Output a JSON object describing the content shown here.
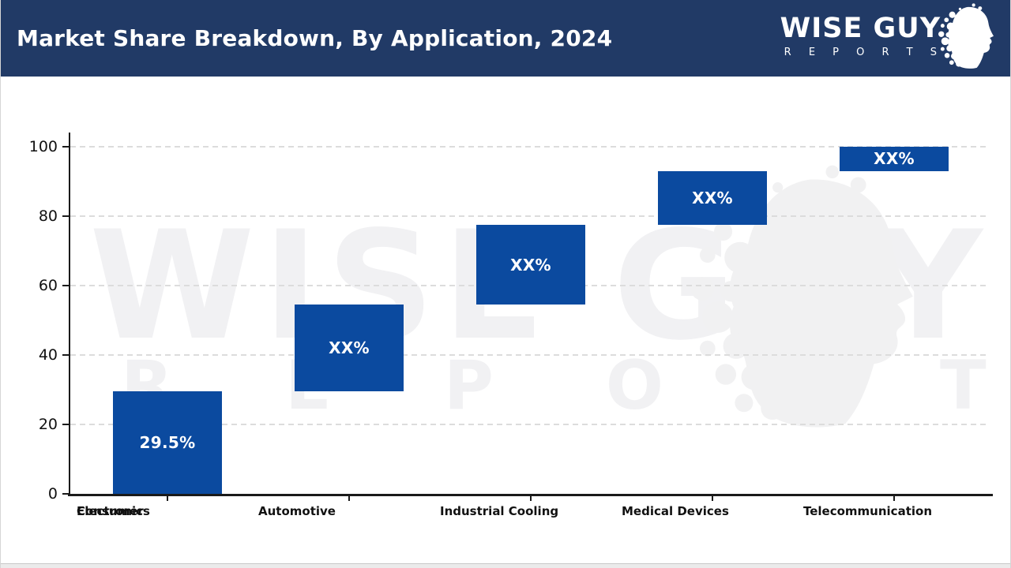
{
  "header": {
    "title": "Market Share Breakdown, By Application, 2024",
    "logo": {
      "line1": "WISE GUY",
      "line2": "R E P O R T S"
    }
  },
  "watermark": {
    "line1": "WISE GUY",
    "line2": "R E P O R T S"
  },
  "colors": {
    "header_background": "#213a66",
    "bar_fill": "#0b4a9f",
    "bar_label": "#ffffff",
    "gridline": "#dcdcdc",
    "axis": "#1a1a1a",
    "watermark": "#f1f1f3"
  },
  "chart_data": {
    "type": "bar",
    "subtype": "waterfall",
    "title": "Market Share Breakdown, By Application, 2024",
    "xlabel": "",
    "ylabel": "",
    "ylim": [
      0,
      105
    ],
    "y_ticks": [
      0,
      20,
      40,
      60,
      80,
      100
    ],
    "grid": "horizontal-dashed",
    "legend": "none",
    "categories": [
      {
        "label": "Consumer Electronics",
        "lines": [
          "Consumer",
          "Electronics"
        ]
      },
      {
        "label": "Automotive",
        "lines": [
          "Automotive"
        ]
      },
      {
        "label": "Industrial Cooling",
        "lines": [
          "Industrial Cooling"
        ]
      },
      {
        "label": "Medical Devices",
        "lines": [
          "Medical Devices"
        ]
      },
      {
        "label": "Telecommunication",
        "lines": [
          "Telecommunication"
        ]
      }
    ],
    "series": [
      {
        "name": "Market Share",
        "segments": [
          {
            "category": "Consumer Electronics",
            "start": 0,
            "end": 29.5,
            "value": 29.5,
            "label": "29.5%"
          },
          {
            "category": "Automotive",
            "start": 29.5,
            "end": 54.5,
            "value": 25,
            "label": "XX%"
          },
          {
            "category": "Industrial Cooling",
            "start": 54.5,
            "end": 77.5,
            "value": 23,
            "label": "XX%"
          },
          {
            "category": "Medical Devices",
            "start": 77.5,
            "end": 93,
            "value": 15.5,
            "label": "XX%"
          },
          {
            "category": "Telecommunication",
            "start": 93,
            "end": 100,
            "value": 7,
            "label": "XX%"
          }
        ]
      }
    ]
  }
}
